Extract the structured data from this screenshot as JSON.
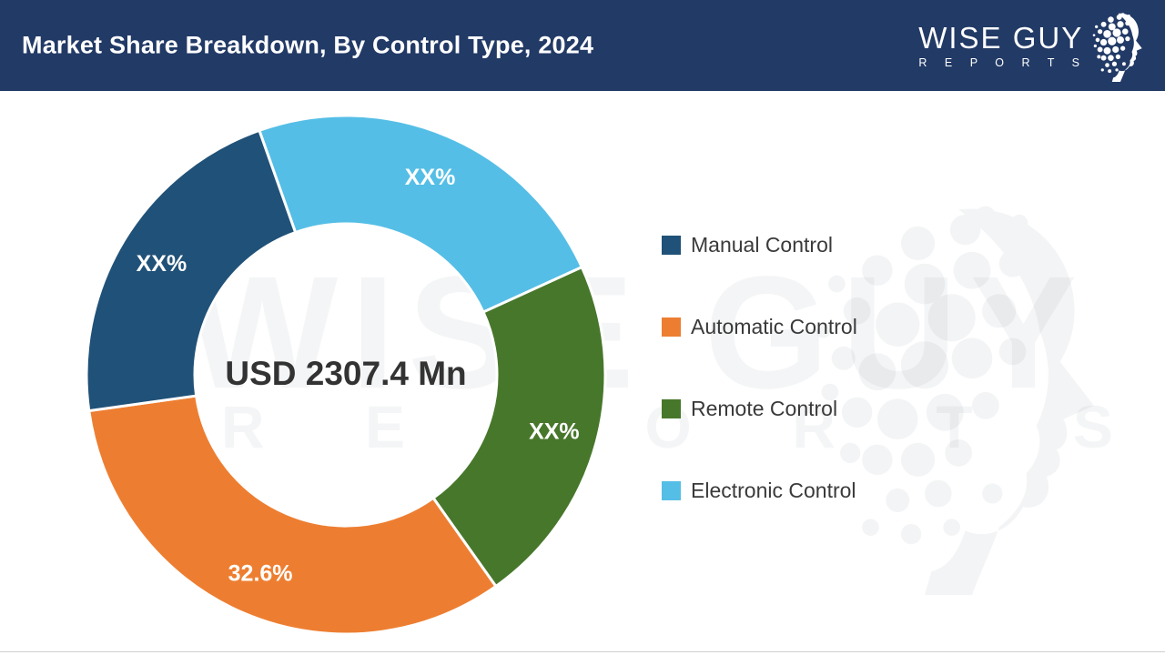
{
  "header": {
    "title": "Market Share Breakdown, By Control Type, 2024",
    "bg_color": "#223A66",
    "logo": {
      "name": "WISE GUY",
      "sub": "R E P O R T S"
    }
  },
  "chart_data": {
    "type": "pie",
    "subtype": "donut",
    "title": "Market Share Breakdown, By Control Type, 2024",
    "center_label": "USD 2307.4 Mn",
    "legend_position": "right",
    "start_angle_deg": 109.5,
    "direction": "clockwise",
    "segments": [
      {
        "name": "Electronic Control",
        "display_label": "XX%",
        "share_pct_estimated": 23.6,
        "value_labeled": false,
        "color": "#55BEE6"
      },
      {
        "name": "Remote Control",
        "display_label": "XX%",
        "share_pct_estimated": 22.0,
        "value_labeled": false,
        "color": "#47772B"
      },
      {
        "name": "Automatic Control",
        "display_label": "32.6%",
        "share_pct_estimated": 32.6,
        "value_labeled": true,
        "color": "#ED7E31"
      },
      {
        "name": "Manual Control",
        "display_label": "XX%",
        "share_pct_estimated": 21.8,
        "value_labeled": false,
        "color": "#205178"
      }
    ]
  },
  "legend": {
    "items": [
      {
        "label": "Manual Control",
        "color": "#205178"
      },
      {
        "label": "Automatic Control",
        "color": "#ED7E31"
      },
      {
        "label": "Remote Control",
        "color": "#47772B"
      },
      {
        "label": "Electronic Control",
        "color": "#55BEE6"
      }
    ]
  },
  "watermark": {
    "line1": "WISE GUY",
    "line2": "R E P O R T S"
  }
}
